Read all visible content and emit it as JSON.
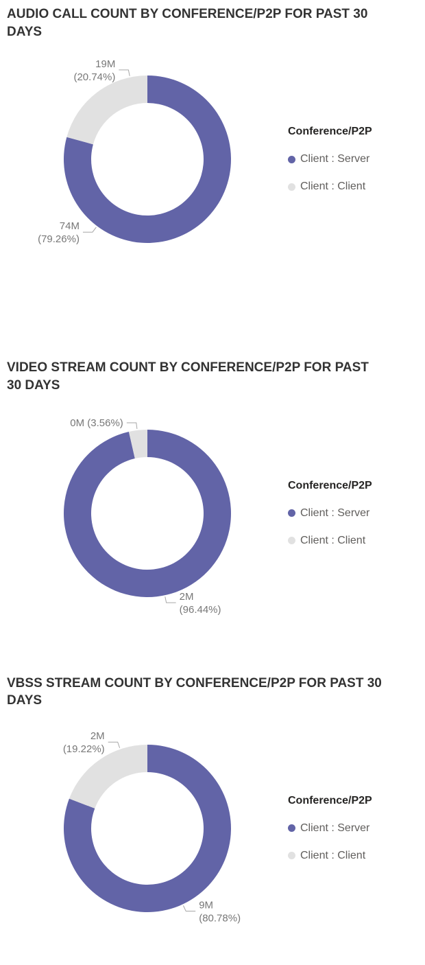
{
  "colors": {
    "primary": "#6264a7",
    "secondary": "#e1e1e1",
    "leader": "#a6a6a6",
    "label": "#777777",
    "title": "#333333"
  },
  "legend": {
    "title": "Conference/P2P",
    "position": "right",
    "items": [
      {
        "label": "Client : Server",
        "color": "primary"
      },
      {
        "label": "Client : Client",
        "color": "secondary"
      }
    ]
  },
  "chart_data": [
    {
      "type": "pie",
      "subtype": "donut",
      "title": "AUDIO CALL COUNT BY CONFERENCE/P2P FOR PAST 30 DAYS",
      "legend_title": "Conference/P2P",
      "legend_position": "right",
      "unit": "M",
      "slices": [
        {
          "name": "Client : Server",
          "value": 74,
          "label": "74M",
          "percent": 79.26,
          "color": "primary"
        },
        {
          "name": "Client : Client",
          "value": 19,
          "label": "19M",
          "percent": 20.74,
          "color": "secondary"
        }
      ],
      "callouts": [
        {
          "lines": [
            "19M",
            "(20.74%)"
          ],
          "angle": 348,
          "side": "left"
        },
        {
          "lines": [
            "74M",
            "(79.26%)"
          ],
          "angle": 217,
          "side": "left"
        }
      ]
    },
    {
      "type": "pie",
      "subtype": "donut",
      "title": "VIDEO STREAM COUNT BY CONFERENCE/P2P FOR PAST 30 DAYS",
      "legend_title": "Conference/P2P",
      "legend_position": "right",
      "unit": "M",
      "slices": [
        {
          "name": "Client : Server",
          "value": 2,
          "label": "2M",
          "percent": 96.44,
          "color": "primary"
        },
        {
          "name": "Client : Client",
          "value": 0,
          "label": "0M",
          "percent": 3.56,
          "color": "secondary"
        }
      ],
      "callouts": [
        {
          "lines": [
            "0M (3.56%)"
          ],
          "angle": 353,
          "side": "left"
        },
        {
          "lines": [
            "2M",
            "(96.44%)"
          ],
          "angle": 168,
          "side": "right"
        }
      ]
    },
    {
      "type": "pie",
      "subtype": "donut",
      "title": "VBSS STREAM COUNT BY CONFERENCE/P2P FOR PAST 30 DAYS",
      "legend_title": "Conference/P2P",
      "legend_position": "right",
      "unit": "M",
      "slices": [
        {
          "name": "Client : Server",
          "value": 9,
          "label": "9M",
          "percent": 80.78,
          "color": "primary"
        },
        {
          "name": "Client : Client",
          "value": 2,
          "label": "2M",
          "percent": 19.22,
          "color": "secondary"
        }
      ],
      "callouts": [
        {
          "lines": [
            "2M",
            "(19.22%)"
          ],
          "angle": 341,
          "side": "left"
        },
        {
          "lines": [
            "9M",
            "(80.78%)"
          ],
          "angle": 155,
          "side": "right"
        }
      ]
    }
  ]
}
